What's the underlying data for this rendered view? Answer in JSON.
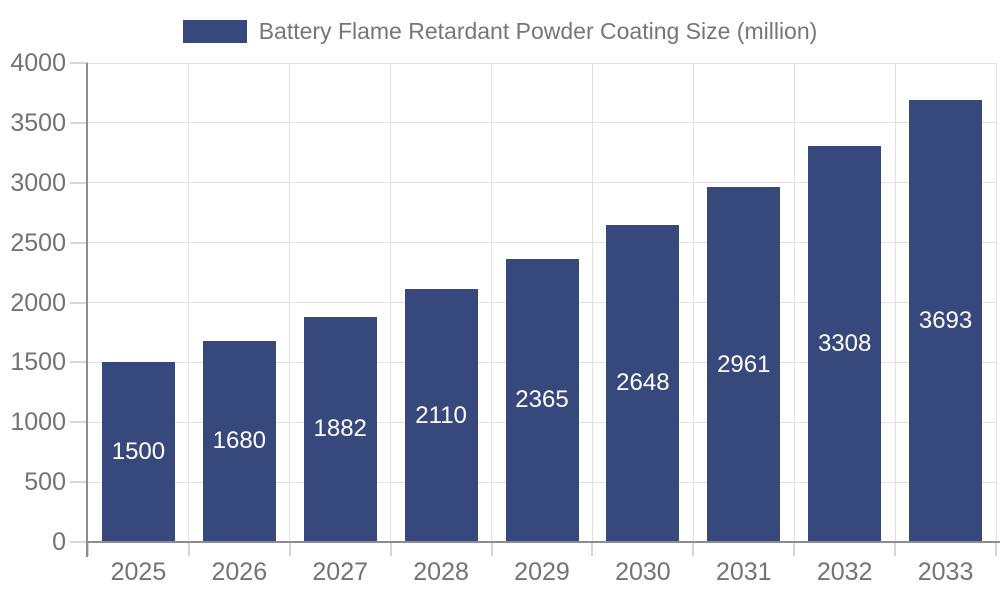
{
  "legend": {
    "label": "Battery Flame Retardant Powder Coating Size (million)"
  },
  "chart_data": {
    "type": "bar",
    "title": "Battery Flame Retardant Powder Coating Size (million)",
    "categories": [
      "2025",
      "2026",
      "2027",
      "2028",
      "2029",
      "2030",
      "2031",
      "2032",
      "2033"
    ],
    "values": [
      1500,
      1680,
      1882,
      2110,
      2365,
      2648,
      2961,
      3308,
      3693
    ],
    "xlabel": "",
    "ylabel": "",
    "ylim": [
      0,
      4000
    ],
    "ytick_step": 500,
    "grid": true,
    "legend_position": "top-center",
    "colors": {
      "bar": "#37487d",
      "value_label": "#ffffff",
      "axis_text": "#737373",
      "grid_line": "#e0e0e0",
      "tick_line": "#d6d6d6",
      "axis_line": "#8c8c8c",
      "background": "#ffffff"
    }
  }
}
